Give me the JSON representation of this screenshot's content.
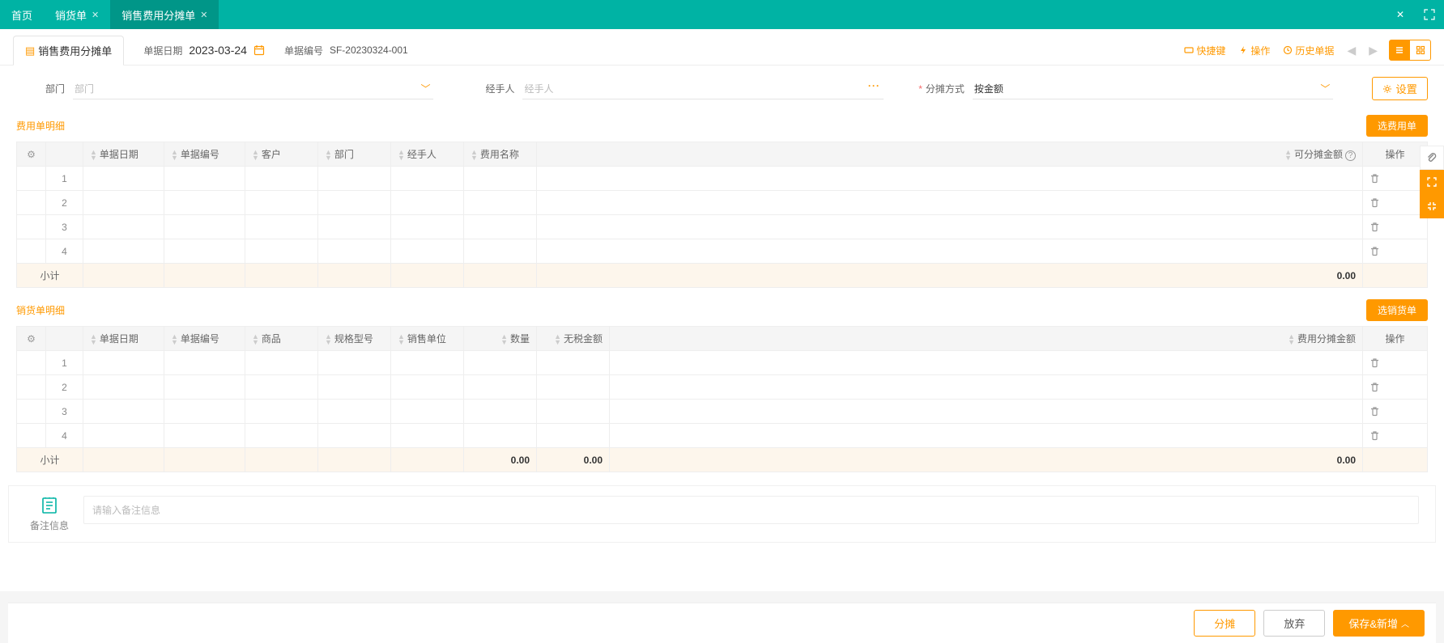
{
  "tabs": {
    "home": "首页",
    "t1": "销货单",
    "t2": "销售费用分摊单"
  },
  "formTab": "销售费用分摊单",
  "header": {
    "dateLabel": "单据日期",
    "date": "2023-03-24",
    "docnoLabel": "单据编号",
    "docno": "SF-20230324-001"
  },
  "toolbar": {
    "shortcut": "快捷键",
    "ops": "操作",
    "history": "历史单据"
  },
  "filters": {
    "deptLabel": "部门",
    "deptPlaceholder": "部门",
    "handlerLabel": "经手人",
    "handlerPlaceholder": "经手人",
    "methodLabel": "分摊方式",
    "methodValue": "按金额",
    "settings": "设置"
  },
  "section1": {
    "title": "费用单明细",
    "btn": "选费用单",
    "cols": {
      "date": "单据日期",
      "no": "单据编号",
      "customer": "客户",
      "dept": "部门",
      "handler": "经手人",
      "feeName": "费用名称",
      "allocAmt": "可分摊金额",
      "ops": "操作"
    },
    "rows": [
      1,
      2,
      3,
      4
    ],
    "subtotalLabel": "小计",
    "subtotalAmt": "0.00"
  },
  "section2": {
    "title": "销货单明细",
    "btn": "选销货单",
    "cols": {
      "date": "单据日期",
      "no": "单据编号",
      "product": "商品",
      "spec": "规格型号",
      "unit": "销售单位",
      "qty": "数量",
      "amtNoTax": "无税金额",
      "allocFee": "费用分摊金额",
      "ops": "操作"
    },
    "rows": [
      1,
      2,
      3,
      4
    ],
    "subtotalLabel": "小计",
    "qtySum": "0.00",
    "amtSum": "0.00",
    "feeSum": "0.00"
  },
  "remark": {
    "label": "备注信息",
    "placeholder": "请输入备注信息"
  },
  "footer": {
    "alloc": "分摊",
    "cancel": "放弃",
    "save": "保存&新增"
  }
}
